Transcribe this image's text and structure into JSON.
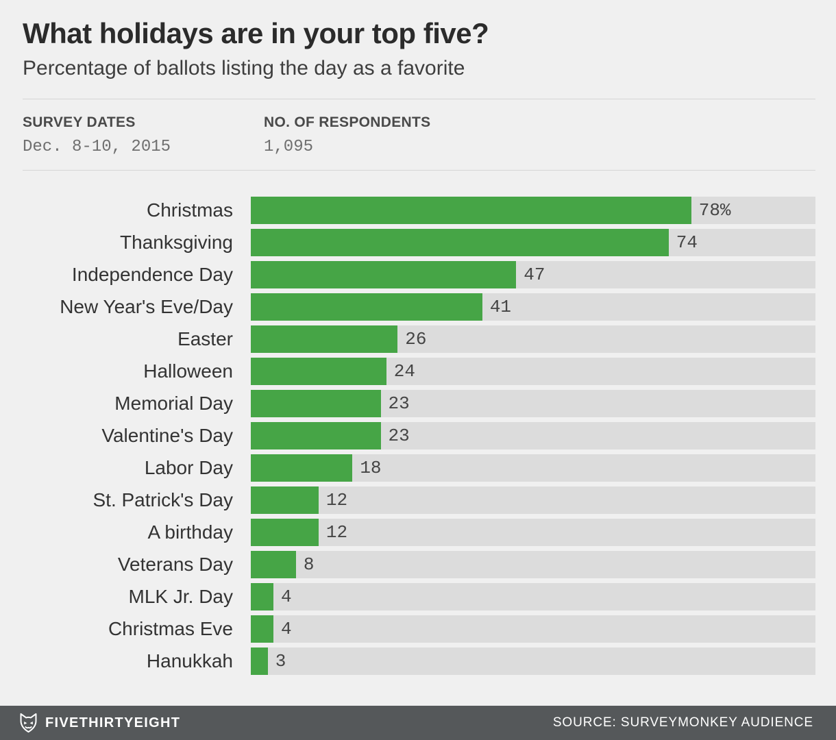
{
  "page": {
    "background": "#f0f0f0"
  },
  "header": {
    "title": "What holidays are in your top five?",
    "subtitle": "Percentage of ballots listing the day as a favorite"
  },
  "meta": {
    "items": [
      {
        "label": "SURVEY DATES",
        "value": "Dec. 8-10, 2015"
      },
      {
        "label": "NO. OF RESPONDENTS",
        "value": "1,095"
      }
    ]
  },
  "chart_data": {
    "type": "bar",
    "orientation": "horizontal",
    "title": "What holidays are in your top five?",
    "subtitle": "Percentage of ballots listing the day as a favorite",
    "categories": [
      "Christmas",
      "Thanksgiving",
      "Independence Day",
      "New Year's Eve/Day",
      "Easter",
      "Halloween",
      "Memorial Day",
      "Valentine's Day",
      "Labor Day",
      "St. Patrick's Day",
      "A birthday",
      "Veterans Day",
      "MLK Jr. Day",
      "Christmas Eve",
      "Hanukkah"
    ],
    "values": [
      78,
      74,
      47,
      41,
      26,
      24,
      23,
      23,
      18,
      12,
      12,
      8,
      4,
      4,
      3
    ],
    "value_labels": [
      "78%",
      "74",
      "47",
      "41",
      "26",
      "24",
      "23",
      "23",
      "18",
      "12",
      "12",
      "8",
      "4",
      "4",
      "3"
    ],
    "xlabel": "",
    "ylabel": "",
    "xlim": [
      0,
      100
    ],
    "grid": false,
    "legend": "none",
    "bar_color": "#46a546",
    "track_color": "#dcdcdc",
    "value_label_color": "#454545"
  },
  "footer": {
    "brand": "FIVETHIRTYEIGHT",
    "source": "SOURCE: SURVEYMONKEY AUDIENCE",
    "background": "#55585a",
    "logo": "fivethirtyeight-fox-logo"
  }
}
